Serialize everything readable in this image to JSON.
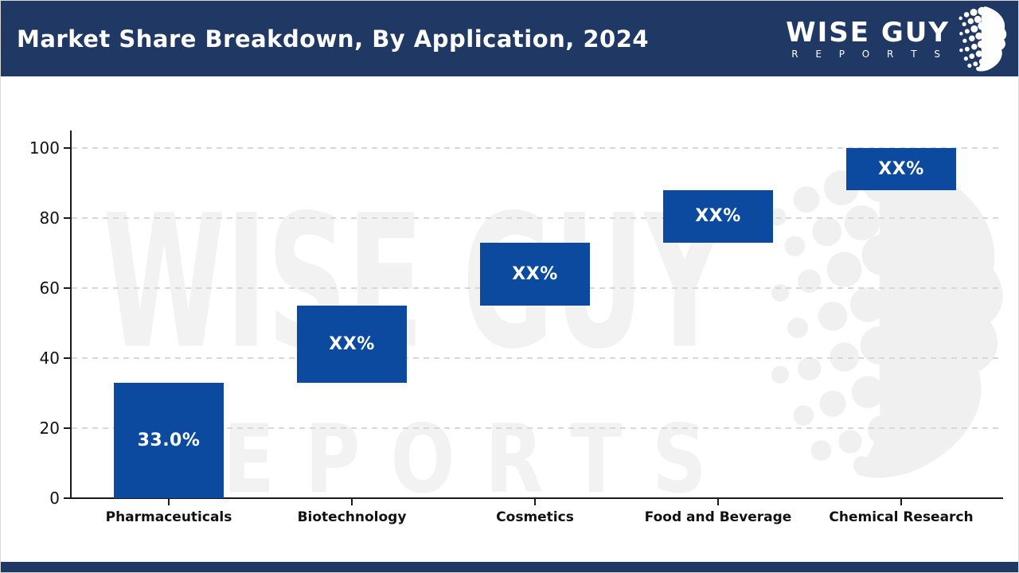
{
  "header": {
    "title": "Market Share Breakdown, By Application, 2024",
    "brand": {
      "line1": "WISE GUY",
      "line2": "R E P O R T S"
    }
  },
  "watermark": {
    "line1": "WISE GUY",
    "line2": "REPORTS"
  },
  "colors": {
    "header_bg": "#1f3864",
    "bar_blue": "#0b4a9e",
    "grid_gray": "#d8d8d8",
    "watermark_gray": "#f2f2f2",
    "text_dark": "#111111",
    "text_white": "#ffffff"
  },
  "chart_data": {
    "type": "bar",
    "subtype": "waterfall",
    "title": "Market Share Breakdown, By Application, 2024",
    "categories": [
      "Pharmaceuticals",
      "Biotechnology",
      "Cosmetics",
      "Food and Beverage",
      "Chemical Research"
    ],
    "segments": [
      {
        "category": "Pharmaceuticals",
        "start": 0,
        "end": 33,
        "value": 33,
        "label": "33.0%"
      },
      {
        "category": "Biotechnology",
        "start": 33,
        "end": 55,
        "value": 22,
        "label": "XX%"
      },
      {
        "category": "Cosmetics",
        "start": 55,
        "end": 73,
        "value": 18,
        "label": "XX%"
      },
      {
        "category": "Food and Beverage",
        "start": 73,
        "end": 88,
        "value": 15,
        "label": "XX%"
      },
      {
        "category": "Chemical Research",
        "start": 88,
        "end": 100,
        "value": 12,
        "label": "XX%"
      }
    ],
    "yticks": [
      0,
      20,
      40,
      60,
      80,
      100
    ],
    "ylim": [
      0,
      105
    ],
    "xlabel": "",
    "ylabel": "",
    "grid": "horizontal-dashed",
    "legend": "none",
    "bar_color": "#0b4a9e",
    "label_color": "#ffffff"
  }
}
